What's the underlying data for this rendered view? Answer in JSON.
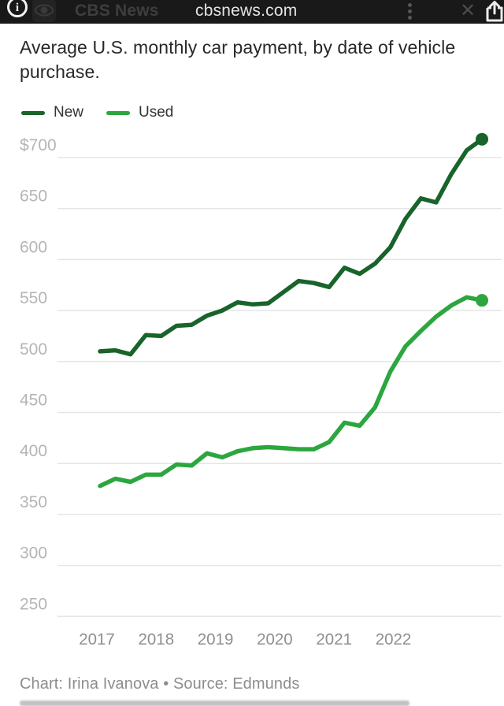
{
  "header": {
    "site_name": "CBS News",
    "url": "cbsnews.com",
    "icons": {
      "info": "info-icon",
      "logo": "cbs-eye-logo",
      "menu": "kebab-menu-icon",
      "close": "close-icon",
      "close_glyph": "✕",
      "share": "share-icon"
    }
  },
  "chart": {
    "title": "Average U.S. monthly car payment, by date of vehicle purchase.",
    "caption": "Chart: Irina Ivanova • Source: Edmunds"
  },
  "chart_data": {
    "type": "line",
    "title": "Average U.S. monthly car payment, by date of vehicle purchase.",
    "x_unit": "quarterly, 2017 Q1 through 2023 Q2",
    "x_tick_labels": [
      "2017",
      "2018",
      "2019",
      "2020",
      "2021",
      "2022"
    ],
    "y_ticks": [
      {
        "value": 700,
        "label": "$700"
      },
      {
        "value": 650,
        "label": "650"
      },
      {
        "value": 600,
        "label": "600"
      },
      {
        "value": 550,
        "label": "550"
      },
      {
        "value": 500,
        "label": "500"
      },
      {
        "value": 450,
        "label": "450"
      },
      {
        "value": 400,
        "label": "400"
      },
      {
        "value": 350,
        "label": "350"
      },
      {
        "value": 300,
        "label": "300"
      },
      {
        "value": 250,
        "label": "250"
      }
    ],
    "ylim": [
      250,
      730
    ],
    "grid": "horizontal",
    "legend_position": "top-left",
    "series": [
      {
        "name": "New",
        "color": "#18642b",
        "end_dot": true,
        "values": [
          510,
          511,
          507,
          526,
          525,
          535,
          536,
          545,
          550,
          558,
          556,
          557,
          568,
          579,
          577,
          573,
          592,
          586,
          596,
          612,
          640,
          660,
          656,
          684,
          707,
          718
        ]
      },
      {
        "name": "Used",
        "color": "#2ca63e",
        "end_dot": true,
        "values": [
          378,
          385,
          382,
          389,
          389,
          399,
          398,
          410,
          406,
          412,
          415,
          416,
          415,
          414,
          414,
          421,
          440,
          437,
          455,
          490,
          515,
          530,
          544,
          555,
          563,
          560
        ]
      }
    ],
    "credit": "Irina Ivanova",
    "source": "Edmunds"
  },
  "colors": {
    "grid_line": "#e5e5e5",
    "y_label": "#b5b5b5",
    "x_label": "#8f8f8f",
    "title_text": "#282828",
    "caption_text": "#8d8d8d",
    "header_bg": "#191919"
  }
}
